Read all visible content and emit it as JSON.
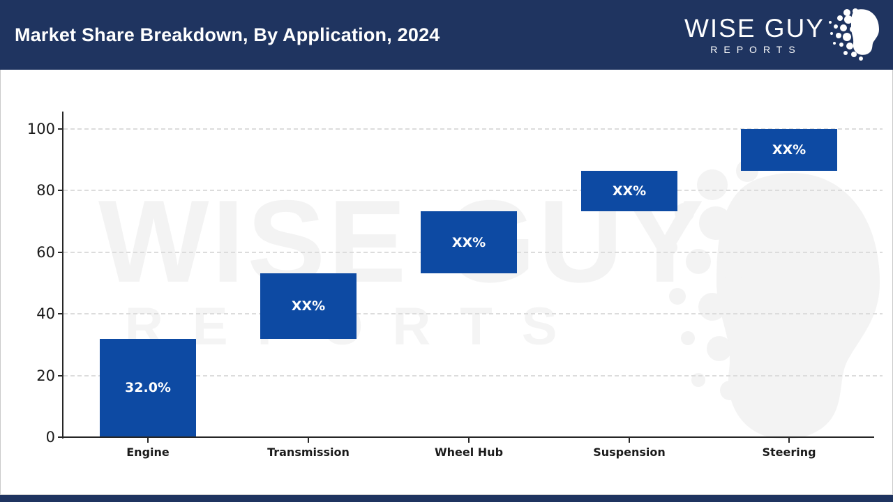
{
  "header": {
    "title": "Market Share Breakdown, By Application, 2024",
    "bg_color": "#1f3460",
    "brand": {
      "line1": "WISE GUY",
      "line2": "REPORTS"
    }
  },
  "watermark": {
    "line1": "WISE GUY",
    "line2": "REPORTS"
  },
  "chart_data": {
    "type": "bar",
    "variant": "waterfall",
    "title": "Market Share Breakdown, By Application, 2024",
    "categories": [
      "Engine",
      "Transmission",
      "Wheel Hub",
      "Suspension",
      "Steering"
    ],
    "segments": [
      {
        "category": "Engine",
        "start": 0,
        "end": 32,
        "label": "32.0%"
      },
      {
        "category": "Transmission",
        "start": 32,
        "end": 53.2,
        "label": "XX%"
      },
      {
        "category": "Wheel Hub",
        "start": 53.2,
        "end": 73.2,
        "label": "XX%"
      },
      {
        "category": "Suspension",
        "start": 73.2,
        "end": 86.4,
        "label": "XX%"
      },
      {
        "category": "Steering",
        "start": 86.4,
        "end": 100,
        "label": "XX%"
      }
    ],
    "ylim": [
      0,
      100
    ],
    "yticks": [
      0,
      20,
      40,
      60,
      80,
      100
    ],
    "xlabel": "",
    "ylabel": "",
    "grid": "horizontal-dashed",
    "legend": "none",
    "bar_color": "#0d4aa3",
    "bar_label_color": "#ffffff"
  },
  "footer": {
    "bg_color": "#1f3460"
  }
}
